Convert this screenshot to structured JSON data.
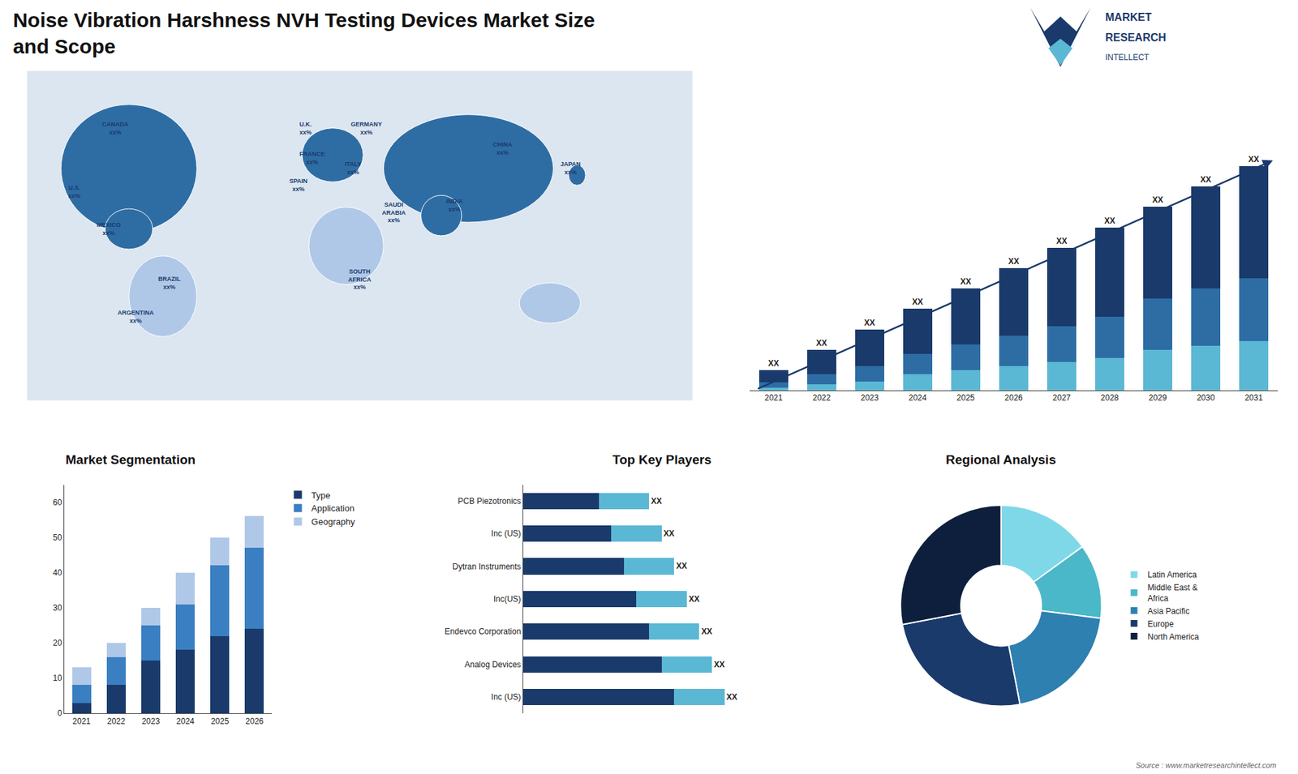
{
  "chart_data": [
    {
      "type": "bar",
      "title": "Noise Vibration Harshness NVH Testing Devices Market Size\nand Scope",
      "categories": [
        "2021",
        "2022",
        "2023",
        "2024",
        "2025",
        "2026",
        "2027",
        "2028",
        "2029",
        "2030",
        "2031"
      ],
      "stacked": true,
      "series": [
        {
          "color": "#5bb8d4",
          "values": [
            0.15,
            0.3,
            0.45,
            0.8,
            1,
            1.2,
            1.4,
            1.6,
            1.98,
            2.2,
            2.42
          ]
        },
        {
          "color": "#2e6da4",
          "values": [
            0.25,
            0.5,
            0.75,
            1,
            1.25,
            1.5,
            1.75,
            2,
            2.52,
            2.8,
            3.08
          ]
        },
        {
          "color": "#1a3a6b",
          "values": [
            0.6,
            1.2,
            1.8,
            2.2,
            2.75,
            3.3,
            3.85,
            4.4,
            4.5,
            5,
            5.5
          ],
          "value_labels": [
            "XX",
            "XX",
            "XX",
            "XX",
            "XX",
            "XX",
            "XX",
            "XX",
            "XX",
            "XX",
            "XX"
          ]
        }
      ],
      "ylim": [
        0,
        14.85
      ],
      "grid": false,
      "tick_labels": "x",
      "annotations": [
        "MARKET",
        "RESEARCH",
        "INTELLECT",
        "Source : www.marketresearchintellect.com"
      ]
    },
    {
      "type": "bar",
      "title": "Market Segmentation",
      "categories": [
        "2021",
        "2022",
        "2023",
        "2024",
        "2025",
        "2026"
      ],
      "stacked": true,
      "series": [
        {
          "name": "Type",
          "color": "#1a3a6b",
          "values": [
            3,
            8,
            15,
            18,
            22,
            24
          ]
        },
        {
          "name": "Application",
          "color": "#3a7fc1",
          "values": [
            5,
            8,
            10,
            13,
            20,
            23
          ]
        },
        {
          "name": "Geography",
          "color": "#b0c8e8",
          "values": [
            5,
            4,
            5,
            9,
            8,
            9
          ]
        }
      ],
      "ylim": [
        0,
        65
      ],
      "yticks": [
        0,
        10,
        20,
        30,
        40,
        50,
        60
      ],
      "grid": false,
      "legend": "right"
    },
    {
      "type": "bar",
      "title": "Top Key Players",
      "orientation": "horizontal",
      "categories": [
        "PCB Piezotronics",
        "Inc (US)",
        "Dytran Instruments",
        "Inc(US)",
        "Endevco Corporation",
        "Analog Devices",
        "Inc (US)"
      ],
      "stacked": true,
      "series": [
        {
          "color": "#1a3a6b",
          "values": [
            3,
            3.5,
            4,
            4.5,
            5,
            5.5,
            6
          ]
        },
        {
          "color": "#5bb8d4",
          "values": [
            2,
            2,
            2,
            2,
            2,
            2,
            2
          ],
          "value_labels": [
            "XX",
            "XX",
            "XX",
            "XX",
            "XX",
            "XX",
            "XX"
          ]
        }
      ],
      "xlim": [
        0,
        11
      ],
      "grid": false,
      "tick_labels": "y"
    },
    {
      "type": "pie",
      "title": "Regional Analysis",
      "categories": [
        "Latin America",
        "Middle East &\nAfrica",
        "Asia Pacific",
        "Europe",
        "North America"
      ],
      "values": [
        15,
        12,
        20,
        25,
        28
      ],
      "colors": [
        "#7fd8e8",
        "#4ab8c8",
        "#2e80b0",
        "#1a3a6b",
        "#0d1f3c"
      ],
      "legend": "right"
    },
    {
      "type": "map",
      "color": "#1a3a6b",
      "annotations": [
        "CANADA\nxx%",
        "U.S.\nxx%",
        "MEXICO\nxx%",
        "BRAZIL\nxx%",
        "ARGENTINA\nxx%",
        "U.K.\nxx%",
        "FRANCE\nxx%",
        "SPAIN\nxx%",
        "GERMANY\nxx%",
        "ITALY\nxx%",
        "SAUDI\nARABIA\nxx%",
        "SOUTH\nAFRICA\nxx%",
        "CHINA\nxx%",
        "INDIA\nxx%",
        "JAPAN\nxx%"
      ]
    }
  ]
}
